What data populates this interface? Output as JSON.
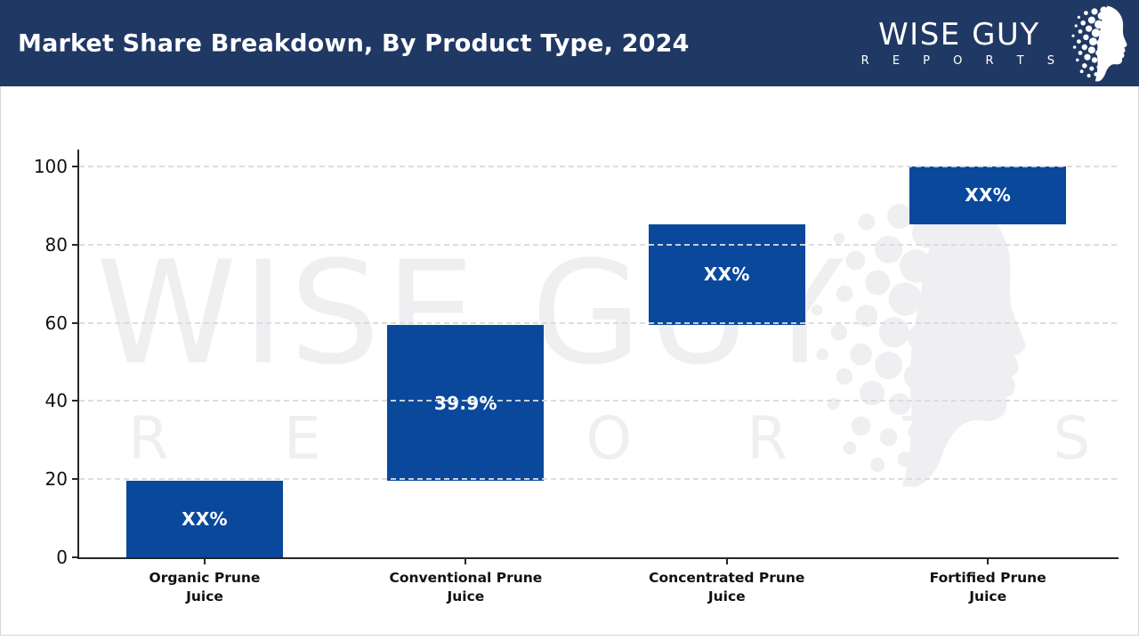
{
  "header": {
    "title": "Market Share Breakdown, By Product Type, 2024",
    "bg_color": "#203864",
    "brand": {
      "line1": "WISE GUY",
      "line2": "R E P O R T S"
    }
  },
  "watermark": {
    "line1": "WISE GUY",
    "line2": "R E P O R T S"
  },
  "chart_data": {
    "type": "bar",
    "variant": "waterfall",
    "title": "Market Share Breakdown, By Product Type, 2024",
    "categories": [
      {
        "line1": "Organic Prune",
        "line2": "Juice"
      },
      {
        "line1": "Conventional Prune",
        "line2": "Juice"
      },
      {
        "line1": "Concentrated Prune",
        "line2": "Juice"
      },
      {
        "line1": "Fortified Prune",
        "line2": "Juice"
      }
    ],
    "series": [
      {
        "name": "Market share (%)",
        "segments": [
          {
            "category": "Organic Prune Juice",
            "start": 0,
            "end": 19.5,
            "value_label": "XX%"
          },
          {
            "category": "Conventional Prune Juice",
            "start": 19.5,
            "end": 59.4,
            "value_label": "39.9%"
          },
          {
            "category": "Concentrated Prune Juice",
            "start": 59.4,
            "end": 85.3,
            "value_label": "XX%"
          },
          {
            "category": "Fortified Prune Juice",
            "start": 85.3,
            "end": 100,
            "value_label": "XX%"
          }
        ]
      }
    ],
    "ylim": [
      0,
      100
    ],
    "yticks": [
      0,
      20,
      40,
      60,
      80,
      100
    ],
    "grid": "horizontal-dashed",
    "legend": "none",
    "bar_color": "#0a489c",
    "bar_label_color": "#ffffff",
    "axis_color": "#262626"
  }
}
